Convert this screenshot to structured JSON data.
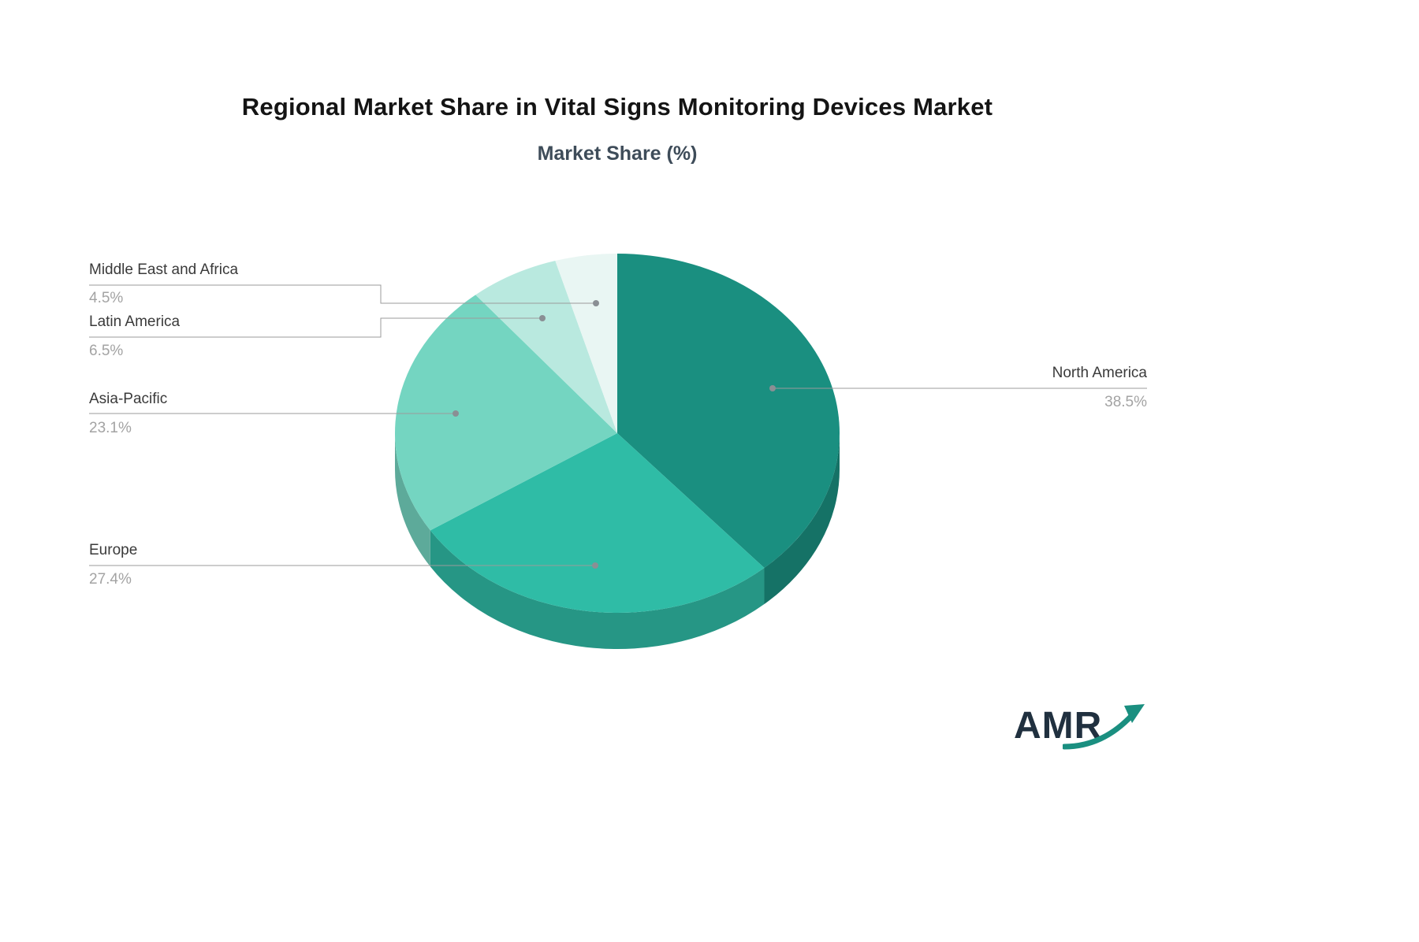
{
  "header": {
    "title": "Regional Market Share in Vital Signs Monitoring Devices Market",
    "subtitle": "Market Share (%)"
  },
  "chart_data": {
    "type": "pie",
    "title": "Regional Market Share in Vital Signs Monitoring Devices Market",
    "subtitle": "Market Share (%)",
    "unit": "%",
    "start_angle_deg": 0,
    "direction": "clockwise",
    "style": "3d-pie",
    "legend_position": "callout-labels",
    "slices": [
      {
        "label": "North America",
        "value": 38.5,
        "color": "#1a8f80"
      },
      {
        "label": "Europe",
        "value": 27.4,
        "color": "#2fbca6"
      },
      {
        "label": "Asia-Pacific",
        "value": 23.1,
        "color": "#74d5c1"
      },
      {
        "label": "Latin America",
        "value": 6.5,
        "color": "#b9e9df"
      },
      {
        "label": "Middle East and Africa",
        "value": 4.5,
        "color": "#e9f6f3"
      }
    ],
    "label_name_color": "#3a3a3a",
    "label_value_color": "#a3a3a3",
    "leader_line_color": "#9b9b9b"
  },
  "logo": {
    "text": "AMR",
    "arrow_color": "#1a8f80"
  }
}
